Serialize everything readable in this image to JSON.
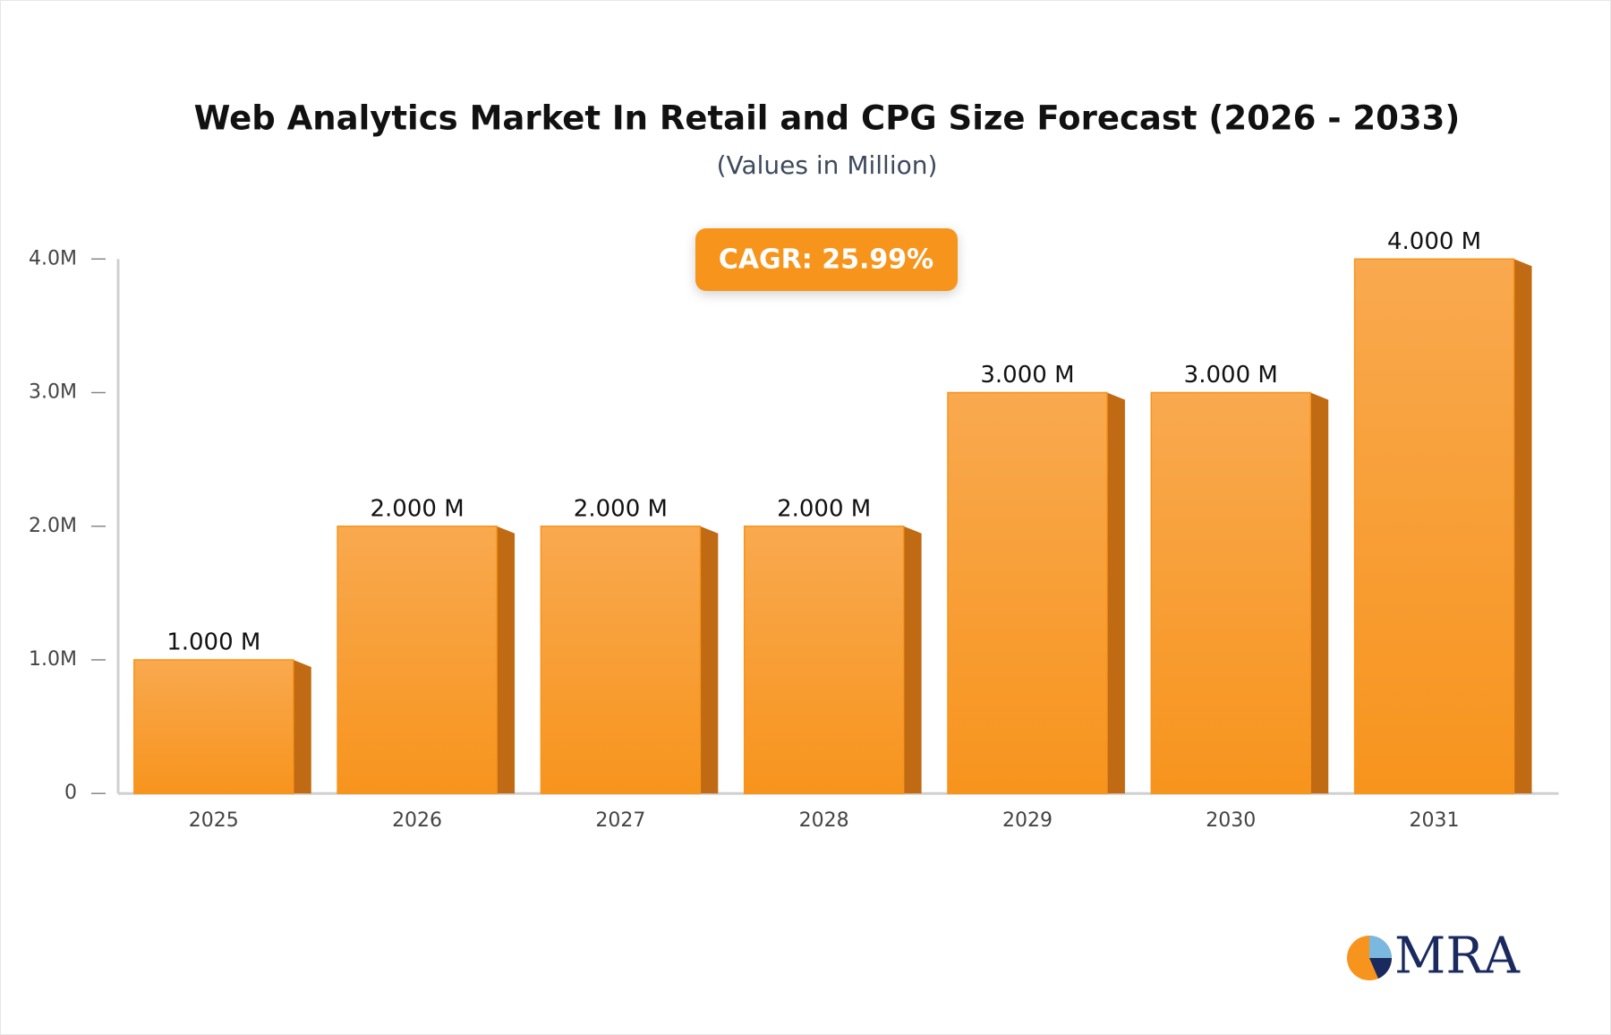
{
  "chart_data": {
    "type": "bar",
    "title": "Web Analytics Market In Retail and CPG Size Forecast (2026 - 2033)",
    "subtitle": "(Values in Million)",
    "annotation": "CAGR: 25.99%",
    "categories": [
      "2025",
      "2026",
      "2027",
      "2028",
      "2029",
      "2030",
      "2031"
    ],
    "values": [
      1000000,
      2000000,
      2000000,
      2000000,
      3000000,
      3000000,
      4000000
    ],
    "value_labels": [
      "1.000 M",
      "2.000 M",
      "2.000 M",
      "2.000 M",
      "3.000 M",
      "3.000 M",
      "4.000 M"
    ],
    "color": "#f7941d",
    "ylim": [
      0,
      4000000
    ],
    "yticks": [
      0,
      {
        "value": 1000000,
        "label": "1.0M"
      },
      {
        "value": 2000000,
        "label": "2.0M"
      },
      {
        "value": 3000000,
        "label": "3.0M"
      },
      {
        "value": 4000000,
        "label": "4.0M"
      }
    ]
  },
  "logo": "MRA"
}
